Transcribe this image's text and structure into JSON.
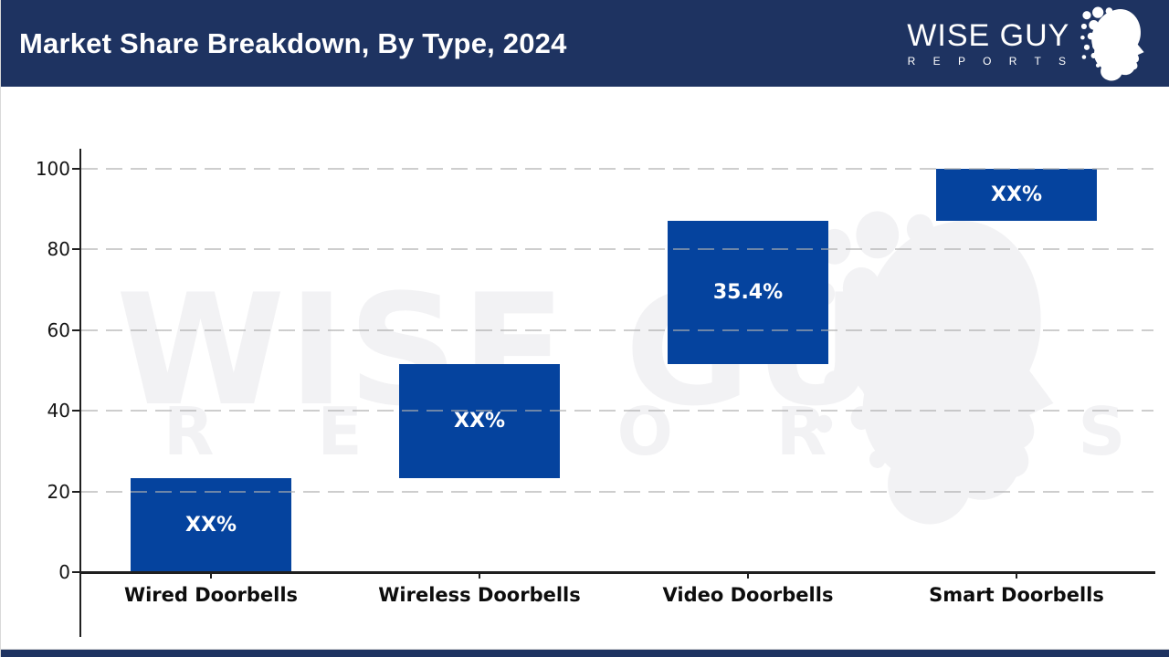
{
  "header": {
    "title": "Market Share Breakdown, By Type, 2024",
    "logo": {
      "line1": "WISE GUY",
      "line2": "R E P O R T S",
      "icon": "dotted-head-profile-icon"
    }
  },
  "watermark": {
    "line1": "WISE GUY",
    "line2": "R E P O R T S",
    "icon": "dotted-head-profile-icon"
  },
  "colors": {
    "header_bg": "#1e3361",
    "footer_bg": "#1e3361",
    "title_text": "#ffffff",
    "logo_text": "#ffffff",
    "bar": "#05439e",
    "bar_label": "#ffffff",
    "axis": "#1f1f1f",
    "tick_text": "#141414",
    "grid": "#d0d0d0",
    "watermark": "#f2f2f4"
  },
  "chart_data": {
    "type": "bar",
    "subtype": "waterfall-floating-bars",
    "title": "Market Share Breakdown, By Type, 2024",
    "categories": [
      "Wired Doorbells",
      "Wireless Doorbells",
      "Video Doorbells",
      "Smart Doorbells"
    ],
    "series": [
      {
        "name": "Wired Doorbells",
        "start": 0,
        "end": 23.4,
        "label": "XX%"
      },
      {
        "name": "Wireless Doorbells",
        "start": 23.4,
        "end": 51.6,
        "label": "XX%"
      },
      {
        "name": "Video Doorbells",
        "start": 51.6,
        "end": 87.0,
        "label": "35.4%"
      },
      {
        "name": "Smart Doorbells",
        "start": 87.0,
        "end": 99.9,
        "label": "XX%"
      }
    ],
    "ylim": [
      0,
      100
    ],
    "yticks": [
      0,
      20,
      40,
      60,
      80,
      100
    ],
    "grid": "horizontal-dashed",
    "legend": "none",
    "xlabel": "",
    "ylabel": ""
  }
}
